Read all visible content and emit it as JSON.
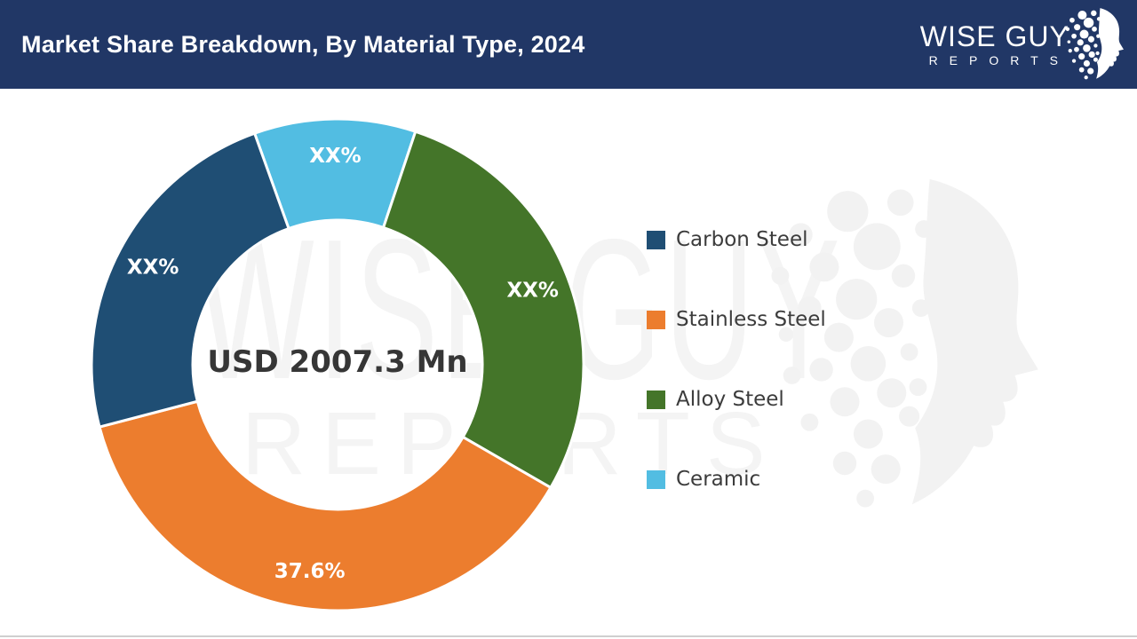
{
  "header": {
    "title": "Market Share Breakdown, By Material Type, 2024",
    "bg_color": "#213766",
    "logo": {
      "line1": "WISE GUY",
      "line2": "REPORTS"
    }
  },
  "watermark": {
    "line1": "WISE GUY",
    "line2": "REPORTS"
  },
  "chart_data": {
    "type": "pie",
    "subtype": "donut",
    "title": "Market Share Breakdown, By Material Type, 2024",
    "center_label": "USD 2007.3 Mn",
    "start_angle_deg": 109.7,
    "direction": "clockwise",
    "inner_radius_ratio": 0.59,
    "legend_position": "right",
    "segments": [
      {
        "name": "Ceramic",
        "value_pct": 10.6,
        "label": "XX%",
        "color": "#52bde2"
      },
      {
        "name": "Alloy Steel",
        "value_pct": 28.2,
        "label": "XX%",
        "color": "#447529"
      },
      {
        "name": "Stainless Steel",
        "value_pct": 37.6,
        "label": "37.6%",
        "color": "#ec7d2e"
      },
      {
        "name": "Carbon Steel",
        "value_pct": 23.6,
        "label": "XX%",
        "color": "#1f4e74"
      }
    ],
    "legend": [
      {
        "name": "Carbon Steel",
        "color": "#1f4e74"
      },
      {
        "name": "Stainless Steel",
        "color": "#ec7d2e"
      },
      {
        "name": "Alloy Steel",
        "color": "#447529"
      },
      {
        "name": "Ceramic",
        "color": "#52bde2"
      }
    ]
  }
}
